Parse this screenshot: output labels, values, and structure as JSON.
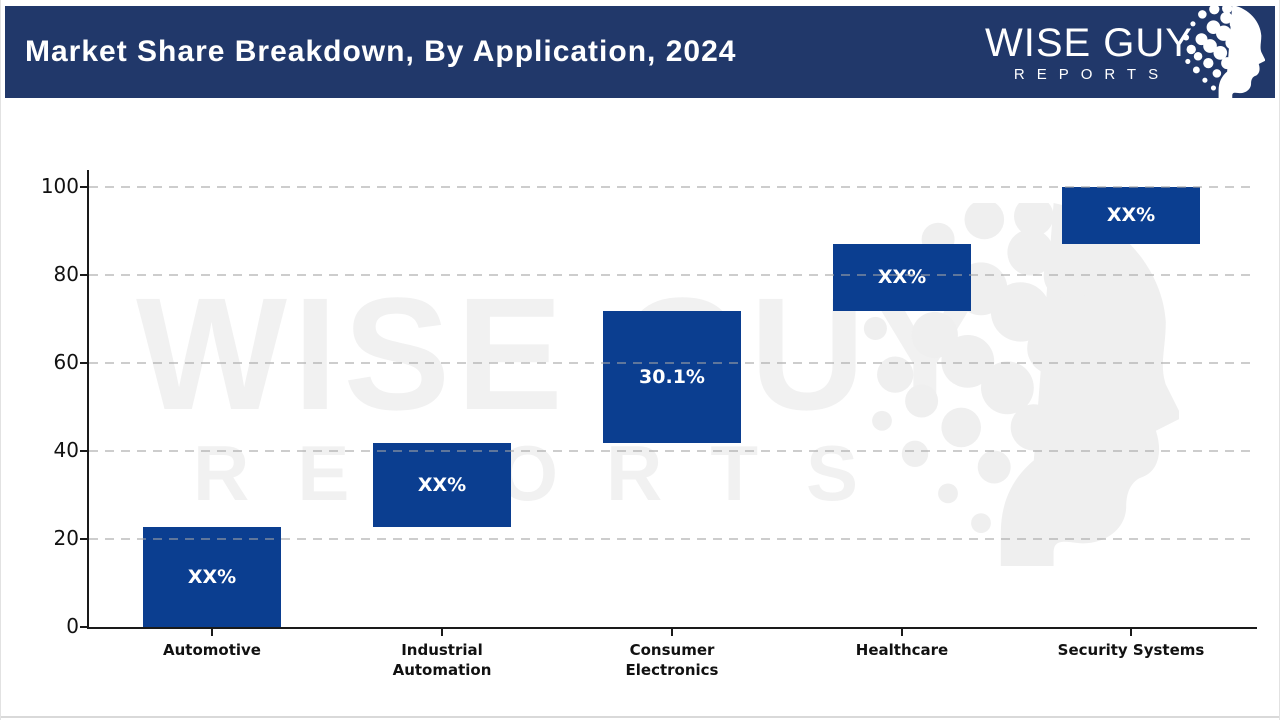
{
  "header": {
    "title": "Market Share Breakdown, By Application, 2024",
    "bg_color": "#21386a",
    "logo": {
      "line1": "WISE GUY",
      "line2": "REPORTS"
    }
  },
  "watermark": {
    "line1": "WISE GUY",
    "line2": "REPORTS"
  },
  "chart_data": {
    "type": "bar",
    "subtype": "waterfall-cumulative-segments",
    "title": "Market Share Breakdown, By Application, 2024",
    "categories": [
      "Automotive",
      "Industrial Automation",
      "Consumer Electronics",
      "Healthcare",
      "Security Systems"
    ],
    "segments": [
      {
        "category": "Automotive",
        "start": 0,
        "end": 22.7,
        "label": "XX%"
      },
      {
        "category": "Industrial Automation",
        "start": 22.7,
        "end": 41.8,
        "label": "XX%"
      },
      {
        "category": "Consumer Electronics",
        "start": 41.8,
        "end": 71.9,
        "label": "30.1%"
      },
      {
        "category": "Healthcare",
        "start": 71.9,
        "end": 87.1,
        "label": "XX%"
      },
      {
        "category": "Security Systems",
        "start": 87.1,
        "end": 100,
        "label": "XX%"
      }
    ],
    "y_ticks": [
      0,
      20,
      40,
      60,
      80,
      100
    ],
    "ylim": [
      0,
      104
    ],
    "xlabel": "",
    "ylabel": "",
    "grid": "dashed-horizontal",
    "legend": "none",
    "bar_color": "#0b3e90",
    "label_color": "#ffffff",
    "axis_color": "#1a1a1a",
    "grid_color": "#c9c9c9"
  }
}
